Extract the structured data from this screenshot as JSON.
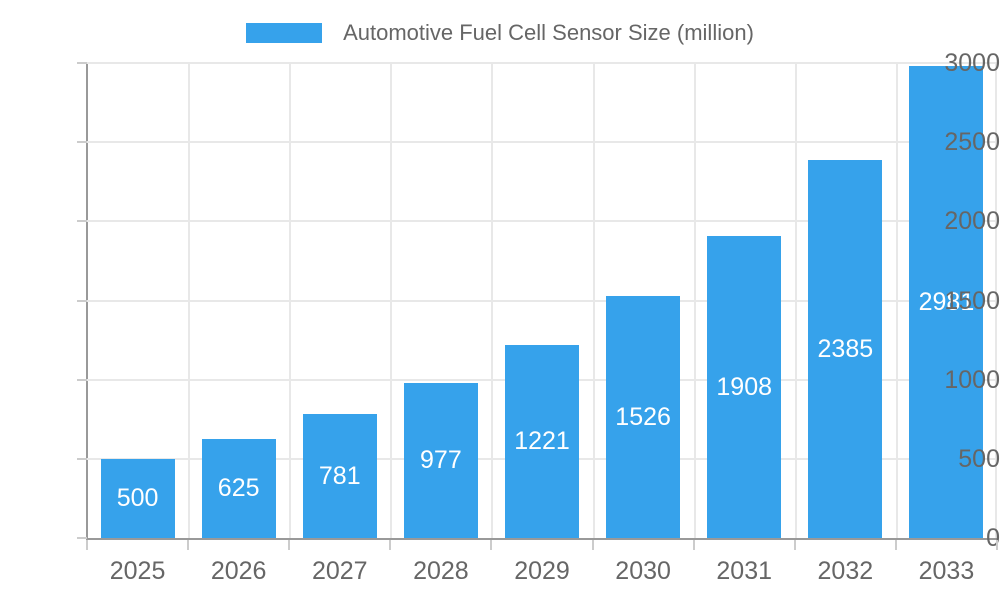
{
  "chart_data": {
    "type": "bar",
    "title": "Automotive Fuel Cell Sensor Size (million)",
    "legend": {
      "label": "Automotive Fuel Cell Sensor Size (million)",
      "position": "top"
    },
    "categories": [
      "2025",
      "2026",
      "2027",
      "2028",
      "2029",
      "2030",
      "2031",
      "2032",
      "2033"
    ],
    "values": [
      500,
      625,
      781,
      977,
      1221,
      1526,
      1908,
      2385,
      2981
    ],
    "xlabel": "",
    "ylabel": "",
    "ylim": [
      0,
      3000
    ],
    "yticks": [
      0,
      500,
      1000,
      1500,
      2000,
      2500,
      3000
    ],
    "grid": true,
    "bar_labels_inside": true,
    "colors": {
      "bar": "#36A2EB",
      "bar_label": "#FFFFFF",
      "axis_text": "#666666",
      "grid_line": "#E8E8E8",
      "axis_line": "#999999",
      "tick": "#CCCCCC",
      "background": "#FFFFFF"
    }
  }
}
